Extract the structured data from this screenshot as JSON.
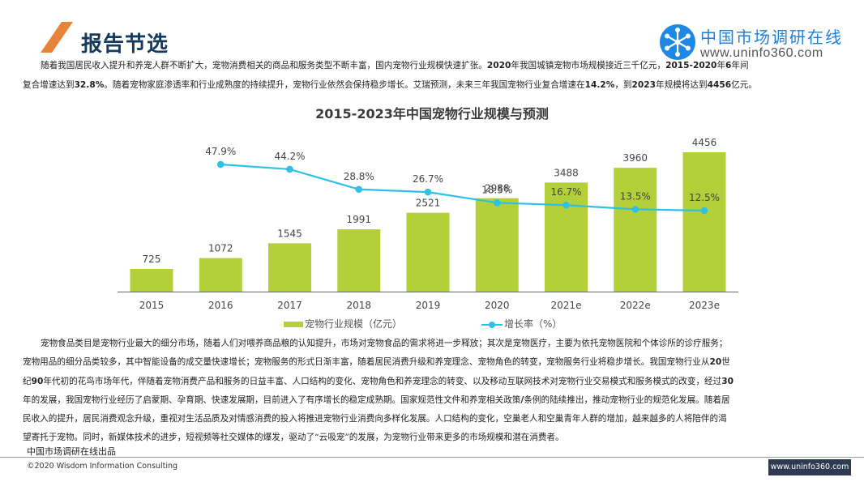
{
  "header": {
    "title": "报告节选",
    "logo_name": "中国市场调研在线",
    "logo_url": "www.uninfo360.com",
    "accent_color": "#e8833a",
    "title_color": "#163a5c"
  },
  "intro_paragraph": {
    "line1": [
      {
        "t": "随着我国居民收入提升和养宠人群不断扩大，宠物消费相关的商品和服务类型不断丰富，国内宠物行业规模快速扩张。",
        "b": false
      },
      {
        "t": "2020",
        "b": true
      },
      {
        "t": "年我国城镇宠物市场规模接近三千亿元，",
        "b": false
      },
      {
        "t": "2015-2020",
        "b": true
      },
      {
        "t": "年",
        "b": false
      },
      {
        "t": "6",
        "b": true
      },
      {
        "t": "年间",
        "b": false
      }
    ],
    "line2": [
      {
        "t": "复合增速达到",
        "b": false
      },
      {
        "t": "32.8%",
        "b": true
      },
      {
        "t": "。随着宠物家庭渗透率和行业成熟度的持续提升，宠物行业依然会保持稳步增长。艾瑞预测，未来三年我国宠物行业复合增速在",
        "b": false
      },
      {
        "t": "14.2%",
        "b": true
      },
      {
        "t": "，到",
        "b": false
      },
      {
        "t": "2023",
        "b": true
      },
      {
        "t": "年规模将达到",
        "b": false
      },
      {
        "t": "4456",
        "b": true
      },
      {
        "t": "亿元。",
        "b": false
      }
    ]
  },
  "chart_data": {
    "type": "bar",
    "title": "2015-2023年中国宠物行业规模与预测",
    "categories": [
      "2015",
      "2016",
      "2017",
      "2018",
      "2019",
      "2020",
      "2021e",
      "2022e",
      "2023e"
    ],
    "series": [
      {
        "name": "宠物行业规模（亿元）",
        "type": "bar",
        "color": "#b3cf3a",
        "values": [
          725,
          1072,
          1545,
          1991,
          2521,
          2988,
          3488,
          3960,
          4456
        ],
        "labels": [
          "725",
          "1072",
          "1545",
          "1991",
          "2521",
          "2988",
          "3488",
          "3960",
          "4456"
        ]
      },
      {
        "name": "增长率（%）",
        "type": "line",
        "color": "#2ec0e6",
        "values": [
          null,
          47.9,
          44.2,
          28.8,
          26.7,
          18.5,
          16.7,
          13.5,
          12.5
        ],
        "labels": [
          null,
          "47.9%",
          "44.2%",
          "28.8%",
          "26.7%",
          "18.5%",
          "16.7%",
          "13.5%",
          "12.5%"
        ]
      }
    ],
    "xlabel": "",
    "ylabel": "",
    "ylim": [
      0,
      4456
    ],
    "y2lim": [
      12.5,
      47.9
    ],
    "grid": false,
    "legend_position": "bottom"
  },
  "body_paragraph": {
    "lines": [
      [
        {
          "t": "宠物食品类目是宠物行业最大的细分市场，随着人们对喂养商品粮的认知提升，市场对宠物食品的需求将进一步释放；其次是宠物医疗，主要为依托宠物医院和个体诊所的诊疗服务；",
          "b": false
        }
      ],
      [
        {
          "t": "宠物用品的细分品类较多，其中智能设备的成交量快速增长；宠物服务的形式日渐丰富，随着居民消费升级和养宠理念、宠物角色的转变，宠物服务行业将稳步增长。我国宠物行业从",
          "b": false
        },
        {
          "t": "20",
          "b": true
        },
        {
          "t": "世",
          "b": false
        }
      ],
      [
        {
          "t": "纪",
          "b": false
        },
        {
          "t": "90",
          "b": true
        },
        {
          "t": "年代初的花鸟市场年代，伴随着宠物消费产品和服务的日益丰富、人口结构的变化、宠物角色和养宠理念的转变、以及移动互联网技术对宠物行业交易模式和服务模式的改变，经过",
          "b": false
        },
        {
          "t": "30",
          "b": true
        }
      ],
      [
        {
          "t": "年的发展，我国宠物行业经历了启蒙期、孕育期、快速发展期，目前进入了有序增长的稳定成熟期。国家规范性文件和养宠相关政策",
          "b": false
        },
        {
          "t": "/",
          "b": true
        },
        {
          "t": "条例的陆续推出，推动宠物行业的规范化发展。随着居",
          "b": false
        }
      ],
      [
        {
          "t": "民收入的提升，居民消费观念升级，重视对生活品质及对情感消费的投入将推进宠物行业消费向多样化发展。人口结构的变化，空巢老人和空巢青年人群的增加，越来越多的人将陪伴的渴",
          "b": false
        }
      ],
      [
        {
          "t": "望寄托于宠物。同时，新媒体技术的进步，短视频等社交媒体的爆发，驱动了“云吸宠”的发展，为宠物行业带来更多的市场规模和潜在消费者。",
          "b": false
        }
      ]
    ]
  },
  "footer": {
    "publisher": "中国市场调研在线出品",
    "copyright": "©2020 Wisdom Information Consulting",
    "url": "www.uninfo360.com"
  }
}
